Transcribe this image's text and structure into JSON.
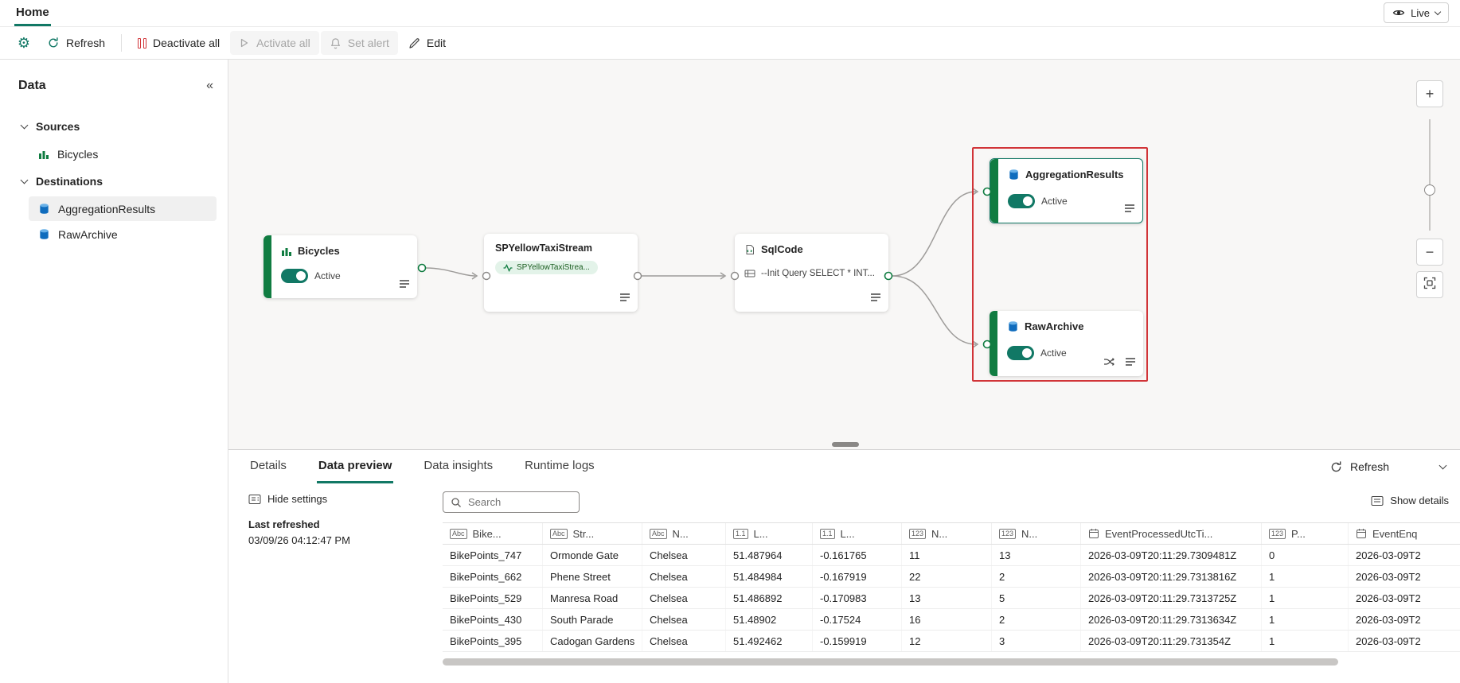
{
  "colors": {
    "accent_green": "#117865",
    "node_green": "#107c41",
    "selection_red": "#d13438",
    "destination_blue": "#0f6cbd"
  },
  "topbar": {
    "home_tab": "Home",
    "live": "Live"
  },
  "toolbar": {
    "refresh": "Refresh",
    "deactivate_all": "Deactivate all",
    "activate_all": "Activate all",
    "set_alert": "Set alert",
    "edit": "Edit"
  },
  "sidebar": {
    "title": "Data",
    "sources_label": "Sources",
    "destinations_label": "Destinations",
    "source_bicycles": "Bicycles",
    "dest_aggregation": "AggregationResults",
    "dest_rawarchive": "RawArchive"
  },
  "canvas": {
    "zoom_in": "+",
    "zoom_out": "−",
    "bicycles": {
      "title": "Bicycles",
      "status": "Active"
    },
    "stream": {
      "title": "SPYellowTaxiStream",
      "badge": "SPYellowTaxiStrea..."
    },
    "sqlcode": {
      "title": "SqlCode",
      "subtitle": "--Init Query SELECT * INT..."
    },
    "aggregation": {
      "title": "AggregationResults",
      "status": "Active"
    },
    "rawarchive": {
      "title": "RawArchive",
      "status": "Active"
    }
  },
  "bottom": {
    "tabs": {
      "details": "Details",
      "data_preview": "Data preview",
      "data_insights": "Data insights",
      "runtime_logs": "Runtime logs"
    },
    "refresh": "Refresh",
    "hide_settings": "Hide settings",
    "last_refreshed_label": "Last refreshed",
    "last_refreshed_value": "03/09/26 04:12:47 PM",
    "search_placeholder": "Search",
    "show_details": "Show details",
    "table": {
      "columns": [
        {
          "label": "Bike...",
          "type": "Abc"
        },
        {
          "label": "Str...",
          "type": "Abc"
        },
        {
          "label": "N...",
          "type": "Abc"
        },
        {
          "label": "L...",
          "type": "1.1"
        },
        {
          "label": "L...",
          "type": "1.1"
        },
        {
          "label": "N...",
          "type": "123"
        },
        {
          "label": "N...",
          "type": "123"
        },
        {
          "label": "EventProcessedUtcTi...",
          "type": "date"
        },
        {
          "label": "P...",
          "type": "123"
        },
        {
          "label": "EventEnq",
          "type": "date"
        }
      ],
      "rows": [
        [
          "BikePoints_747",
          "Ormonde Gate",
          "Chelsea",
          "51.487964",
          "-0.161765",
          "11",
          "13",
          "2026-03-09T20:11:29.7309481Z",
          "0",
          "2026-03-09T2"
        ],
        [
          "BikePoints_662",
          "Phene Street",
          "Chelsea",
          "51.484984",
          "-0.167919",
          "22",
          "2",
          "2026-03-09T20:11:29.7313816Z",
          "1",
          "2026-03-09T2"
        ],
        [
          "BikePoints_529",
          "Manresa Road",
          "Chelsea",
          "51.486892",
          "-0.170983",
          "13",
          "5",
          "2026-03-09T20:11:29.7313725Z",
          "1",
          "2026-03-09T2"
        ],
        [
          "BikePoints_430",
          "South Parade",
          "Chelsea",
          "51.48902",
          "-0.17524",
          "16",
          "2",
          "2026-03-09T20:11:29.7313634Z",
          "1",
          "2026-03-09T2"
        ],
        [
          "BikePoints_395",
          "Cadogan Gardens",
          "Chelsea",
          "51.492462",
          "-0.159919",
          "12",
          "3",
          "2026-03-09T20:11:29.731354Z",
          "1",
          "2026-03-09T2"
        ]
      ]
    }
  }
}
